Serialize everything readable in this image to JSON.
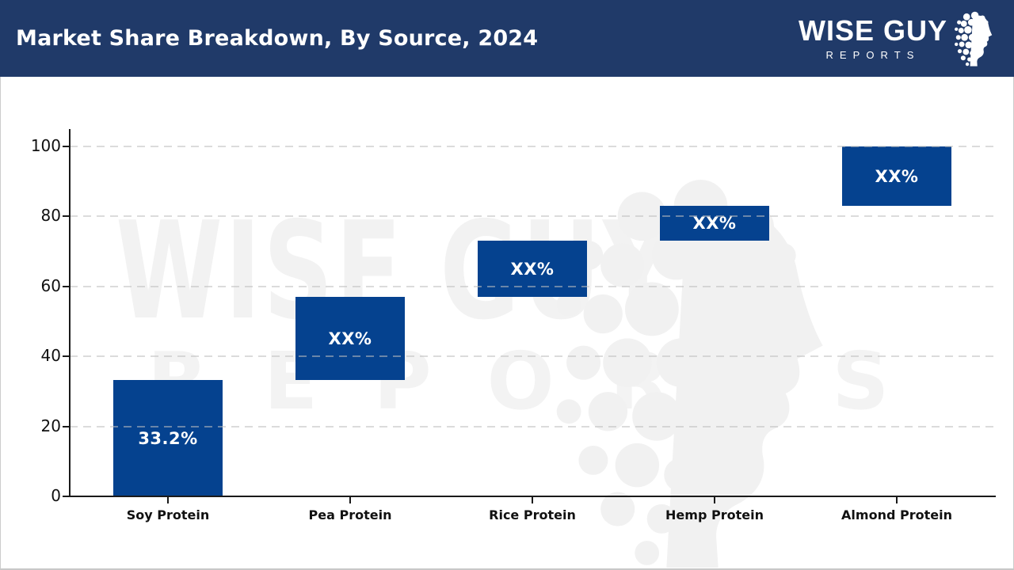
{
  "header": {
    "title": "Market Share Breakdown, By Source, 2024",
    "logo": {
      "wordmark": "WISE GUY",
      "subtext": "REPORTS"
    },
    "background_color": "#203a69"
  },
  "watermark": {
    "wordmark": "WISE GUY",
    "subtext": "REPORTS"
  },
  "chart_data": {
    "type": "bar",
    "subtype": "floating-waterfall",
    "title": "Market Share Breakdown, By Source, 2024",
    "categories": [
      "Soy Protein",
      "Pea Protein",
      "Rice Protein",
      "Hemp Protein",
      "Almond Protein"
    ],
    "segments": [
      {
        "category": "Soy Protein",
        "start": 0,
        "end": 33.2,
        "label": "33.2%"
      },
      {
        "category": "Pea Protein",
        "start": 33.2,
        "end": 57,
        "label": "XX%"
      },
      {
        "category": "Rice Protein",
        "start": 57,
        "end": 73,
        "label": "XX%"
      },
      {
        "category": "Hemp Protein",
        "start": 73,
        "end": 83,
        "label": "XX%"
      },
      {
        "category": "Almond Protein",
        "start": 83,
        "end": 100,
        "label": "XX%"
      }
    ],
    "yticks": [
      0,
      20,
      40,
      60,
      80,
      100
    ],
    "ylim": [
      0,
      105
    ],
    "xlabel": "",
    "ylabel": "",
    "legend": "none",
    "grid": "horizontal-dashed",
    "bar_color": "#05428f",
    "bar_label_color": "#ffffff",
    "axis_color": "#1a1a1a",
    "gridline_color": "#d9d9d9"
  }
}
